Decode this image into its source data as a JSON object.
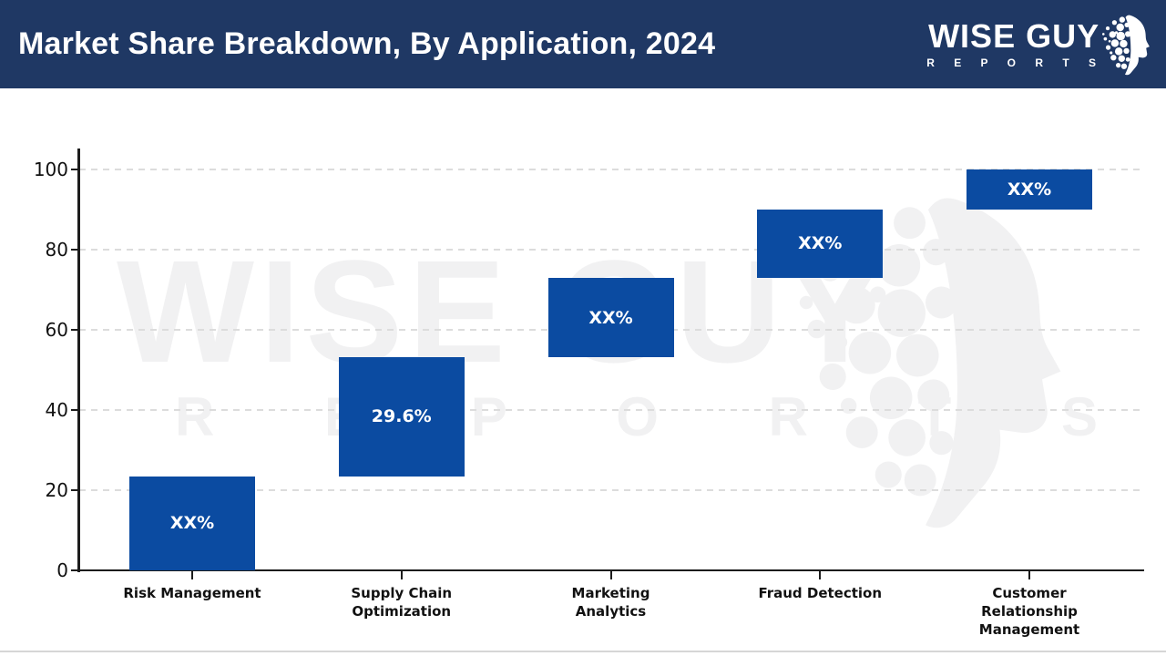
{
  "header": {
    "title": "Market Share Breakdown, By Application, 2024",
    "logo": {
      "line1": "WISE GUY",
      "line2": "R E P O R T S"
    }
  },
  "watermark": {
    "line1": "WISE GUY",
    "line2": "R E P O R T S"
  },
  "colors": {
    "header_bg": "#1f3864",
    "bar": "#0b4ba1",
    "bar_label": "#ffffff",
    "axis": "#1c1c1c",
    "grid": "#dcdcdc",
    "watermark": "#f1f1f2",
    "tick_text": "#111111"
  },
  "chart_data": {
    "type": "bar",
    "subtype": "waterfall",
    "title": "Market Share Breakdown, By Application, 2024",
    "xlabel": "",
    "ylabel": "",
    "ylim": [
      0,
      105
    ],
    "grid": "horizontal-dashed",
    "legend": "none",
    "y_ticks": [
      0,
      20,
      40,
      60,
      80,
      100
    ],
    "categories": [
      "Risk Management",
      "Supply Chain\nOptimization",
      "Marketing\nAnalytics",
      "Fraud Detection",
      "Customer\nRelationship\nManagement"
    ],
    "segments": [
      {
        "label": "XX%",
        "start": 0,
        "end": 23.5
      },
      {
        "label": "29.6%",
        "start": 23.5,
        "end": 53.1
      },
      {
        "label": "XX%",
        "start": 53.1,
        "end": 72.9
      },
      {
        "label": "XX%",
        "start": 72.9,
        "end": 90.1
      },
      {
        "label": "XX%",
        "start": 90.1,
        "end": 100
      }
    ]
  }
}
